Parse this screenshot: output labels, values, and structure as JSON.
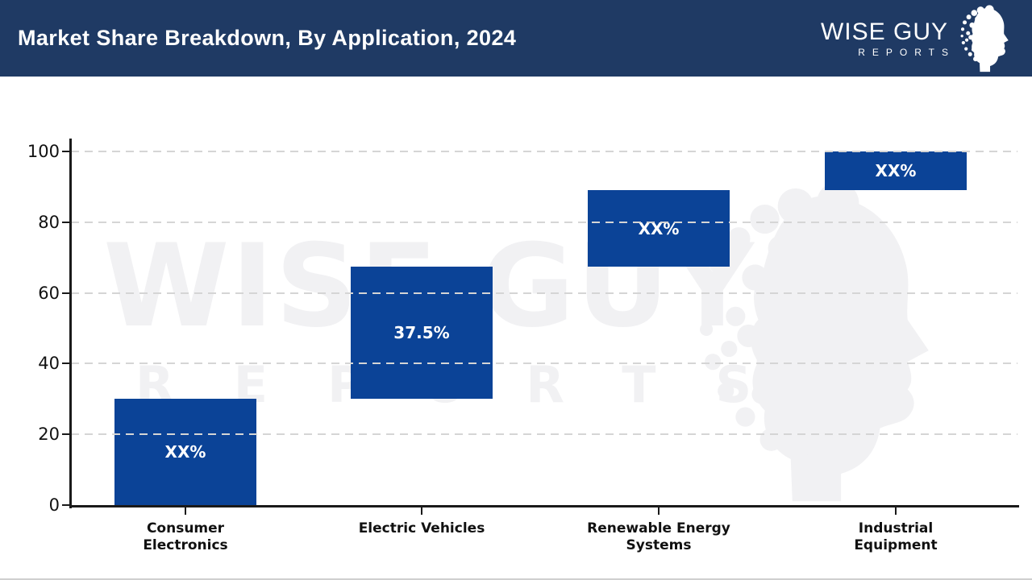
{
  "header": {
    "title": "Market Share Breakdown, By Application, 2024",
    "logo": {
      "name": "WISE GUY",
      "subtitle": "REPORTS"
    }
  },
  "watermark": {
    "name": "WISE GUY",
    "subtitle": "REPORTS"
  },
  "colors": {
    "header_bg": "#1f3a64",
    "bar_fill": "#0b4397",
    "bar_label": "#ffffff",
    "grid_line": "#d5d5d5",
    "axis_line": "#1a1a1a",
    "tick_text": "#111111",
    "watermark": "#f1f1f3"
  },
  "chart_data": {
    "type": "bar",
    "variant": "waterfall",
    "title": "Market Share Breakdown, By Application, 2024",
    "ylim": [
      0,
      100
    ],
    "yticks": [
      0,
      20,
      40,
      60,
      80,
      100
    ],
    "grid": "horizontal-dashed",
    "legend": "none",
    "bars": [
      {
        "category": "Consumer Electronics",
        "category_display": "Consumer\nElectronics",
        "start": 0,
        "end": 30,
        "value": 30,
        "bar_label": "XX%"
      },
      {
        "category": "Electric Vehicles",
        "category_display": "Electric Vehicles",
        "start": 30,
        "end": 67.5,
        "value": 37.5,
        "bar_label": "37.5%"
      },
      {
        "category": "Renewable Energy Systems",
        "category_display": "Renewable Energy\nSystems",
        "start": 67.5,
        "end": 89,
        "value": 21.5,
        "bar_label": "XX%"
      },
      {
        "category": "Industrial Equipment",
        "category_display": "Industrial\nEquipment",
        "start": 89,
        "end": 100,
        "value": 11,
        "bar_label": "XX%"
      }
    ]
  }
}
